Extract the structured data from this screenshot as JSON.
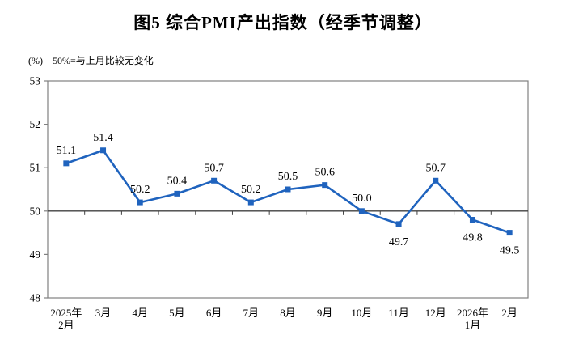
{
  "chart_data": {
    "type": "line",
    "title": "图5 综合PMI产出指数（经季节调整）",
    "unit_label": "(%)",
    "note": "50%=与上月比较无变化",
    "categories": [
      "2025年|2月",
      "3月",
      "4月",
      "5月",
      "6月",
      "7月",
      "8月",
      "9月",
      "10月",
      "11月",
      "12月",
      "2026年|1月",
      "2月"
    ],
    "values": [
      51.1,
      51.4,
      50.2,
      50.4,
      50.7,
      50.2,
      50.5,
      50.6,
      50.0,
      49.7,
      50.7,
      49.8,
      49.5
    ],
    "data_label_positions": [
      "above",
      "above",
      "above",
      "above",
      "above",
      "above",
      "above",
      "above",
      "above",
      "below",
      "above",
      "below",
      "below"
    ],
    "ylim": [
      48,
      53
    ],
    "yticks": [
      48,
      49,
      50,
      51,
      52,
      53
    ],
    "reference_line": 50,
    "grid": false,
    "legend": false,
    "colors": {
      "line": "#1F63BE",
      "marker": "#1F63BE",
      "plot_border": "#808080",
      "reference_line": "#404040",
      "text": "#000000"
    }
  }
}
